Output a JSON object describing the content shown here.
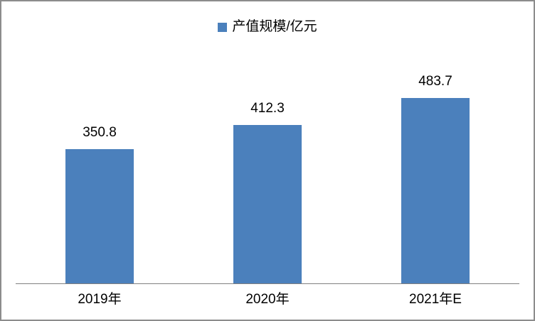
{
  "chart_data": {
    "type": "bar",
    "categories": [
      "2019年",
      "2020年",
      "2021年E"
    ],
    "values": [
      350.8,
      412.3,
      483.7
    ],
    "value_labels": [
      "350.8",
      "412.3",
      "483.7"
    ],
    "series": [
      {
        "name": "产值规模/亿元",
        "values": [
          350.8,
          412.3,
          483.7
        ]
      }
    ],
    "title": "",
    "xlabel": "",
    "ylabel": "",
    "ylim": [
      0,
      600
    ],
    "grid": false,
    "legend_position": "top-center",
    "colors": {
      "bar": "#4b80bc",
      "axis_line": "#808080",
      "frame_border": "#8c8c8c",
      "label_text": "#000000"
    }
  },
  "legend": {
    "marker": "legend-square-icon",
    "label": "产值规模/亿元"
  }
}
